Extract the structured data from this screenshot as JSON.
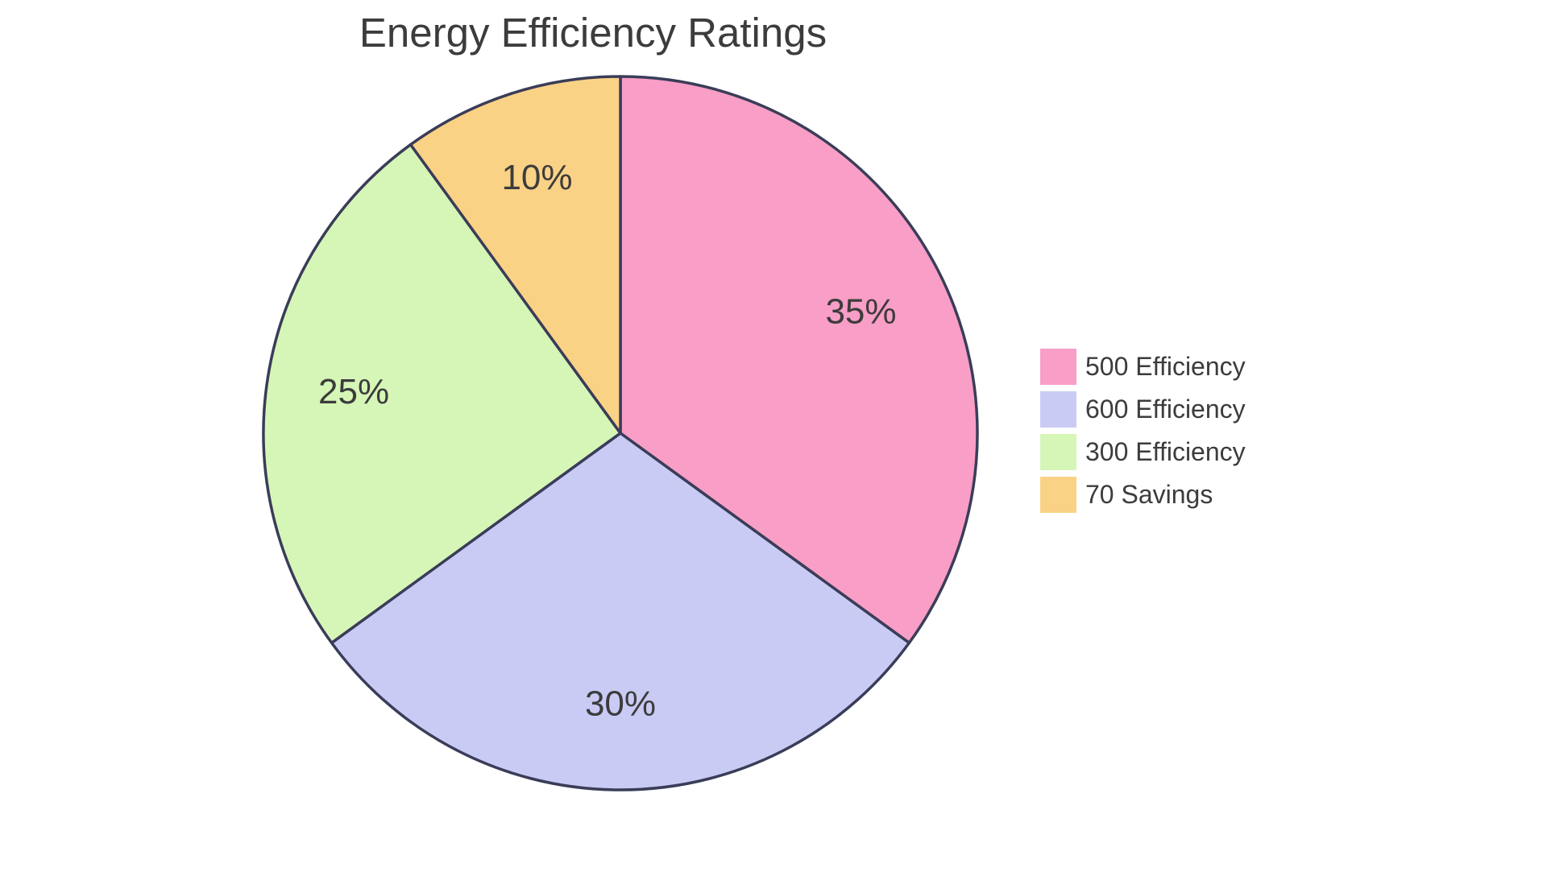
{
  "chart_data": {
    "type": "pie",
    "title": "Energy Efficiency Ratings",
    "slices": [
      {
        "label": "500 Efficiency",
        "value": 35,
        "pct_label": "35%",
        "color": "#F99EC6"
      },
      {
        "label": "600 Efficiency",
        "value": 30,
        "pct_label": "30%",
        "color": "#C9CBF5"
      },
      {
        "label": "300 Efficiency",
        "value": 25,
        "pct_label": "25%",
        "color": "#D6F6B7"
      },
      {
        "label": "70 Savings",
        "value": 10,
        "pct_label": "10%",
        "color": "#FAD286"
      }
    ],
    "start_angle_deg": 0,
    "direction": "clockwise",
    "stroke_color": "#3A3D58",
    "text_color": "#3C3C3C",
    "background": "#FFFFFF",
    "legend_position": "right",
    "labels": "percent-inside-slices"
  }
}
